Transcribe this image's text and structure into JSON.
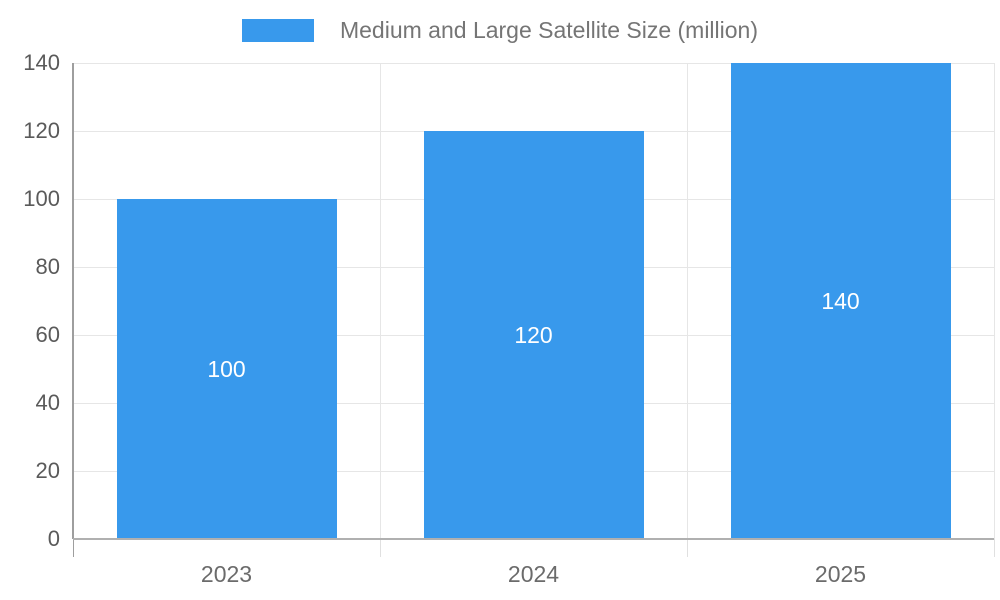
{
  "chart_data": {
    "type": "bar",
    "legend": "Medium and Large Satellite Size (million)",
    "categories": [
      "2023",
      "2024",
      "2025"
    ],
    "values": [
      100,
      120,
      140
    ],
    "series": [
      {
        "name": "Medium and Large Satellite Size (million)",
        "values": [
          100,
          120,
          140
        ]
      }
    ],
    "bar_value_labels": [
      "100",
      "120",
      "140"
    ],
    "title": "",
    "xlabel": "",
    "ylabel": "",
    "ylim": [
      0,
      140
    ],
    "yticks": [
      0,
      20,
      40,
      60,
      80,
      100,
      120,
      140
    ],
    "grid": true,
    "legend_position": "top-center",
    "colors": {
      "bar": "#3899ec",
      "grid_line": "#e6e6e6",
      "boundary_tick": "#e0e0e0",
      "axis_line": "#9e9e9e",
      "baseline": "#b0b0b0",
      "tick_text": "#5a5a5a",
      "category_text": "#6b6b6b",
      "legend_text": "#757575",
      "bar_label_text": "#ffffff",
      "background": "#ffffff"
    }
  }
}
